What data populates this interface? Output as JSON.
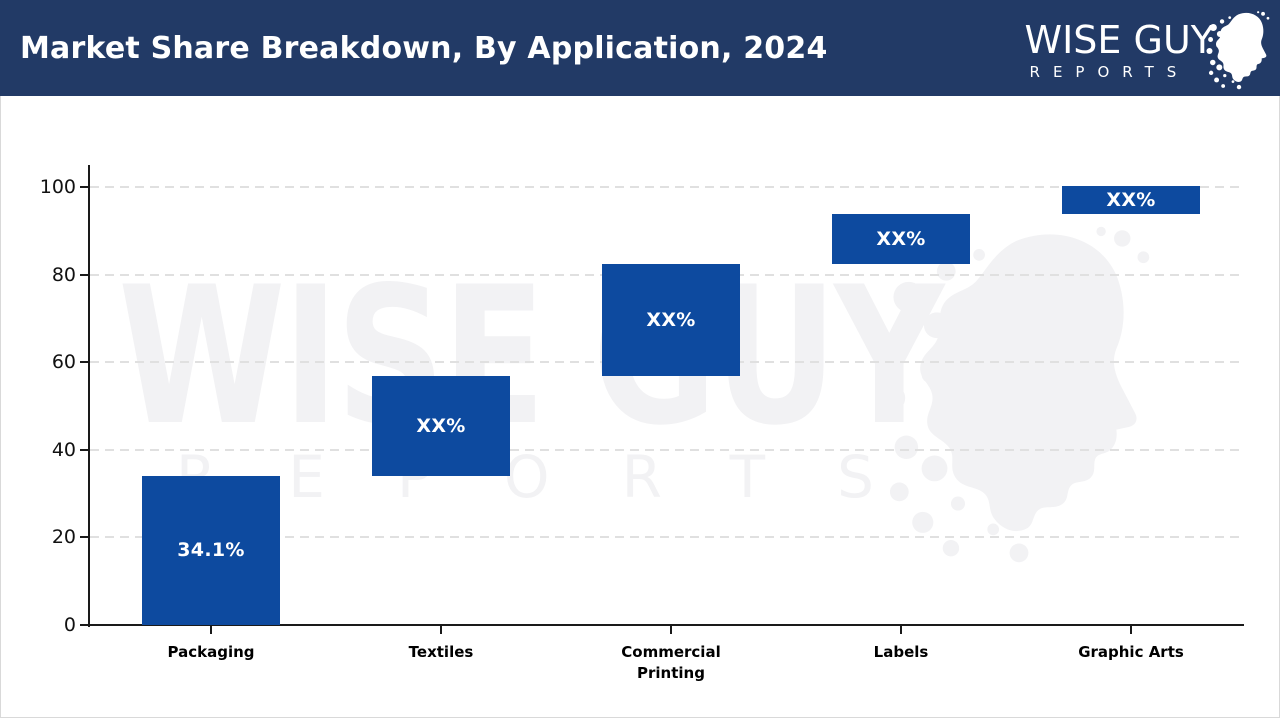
{
  "header": {
    "title": "Market Share Breakdown, By Application, 2024",
    "logo": {
      "wordmark": "WISE GUY",
      "subtext": "REPORTS"
    }
  },
  "watermark": {
    "line1": "WISE GUY",
    "line2": "REPORTS"
  },
  "chart_data": {
    "type": "bar",
    "subtype": "waterfall-stacked-percentage",
    "title": "Market Share Breakdown, By Application, 2024",
    "xlabel": "",
    "ylabel": "",
    "categories": [
      "Packaging",
      "Textiles",
      "Commercial Printing",
      "Labels",
      "Graphic Arts"
    ],
    "categories_lines": [
      [
        "Packaging"
      ],
      [
        "Textiles"
      ],
      [
        "Commercial",
        "Printing"
      ],
      [
        "Labels"
      ],
      [
        "Graphic Arts"
      ]
    ],
    "segments": [
      {
        "category": "Packaging",
        "start": 0,
        "end": 34.1,
        "label": "34.1%"
      },
      {
        "category": "Textiles",
        "start": 34.1,
        "end": 56.8,
        "label": "XX%"
      },
      {
        "category": "Commercial Printing",
        "start": 56.8,
        "end": 82.4,
        "label": "XX%"
      },
      {
        "category": "Labels",
        "start": 82.4,
        "end": 93.8,
        "label": "XX%"
      },
      {
        "category": "Graphic Arts",
        "start": 93.8,
        "end": 100.2,
        "label": "XX%"
      }
    ],
    "yticks": [
      0,
      20,
      40,
      60,
      80,
      100
    ],
    "ylim": [
      0,
      105
    ],
    "grid": "dashed-horizontal",
    "legend": "none"
  },
  "colors": {
    "header_bg": "#223a66",
    "bar": "#0d4a9f",
    "bar_label": "#ffffff",
    "grid": "#e0e0e0",
    "axis": "#1a1a1a",
    "watermark": "#f2f2f4",
    "frame_border": "#d9d9d9",
    "title_text": "#ffffff"
  }
}
